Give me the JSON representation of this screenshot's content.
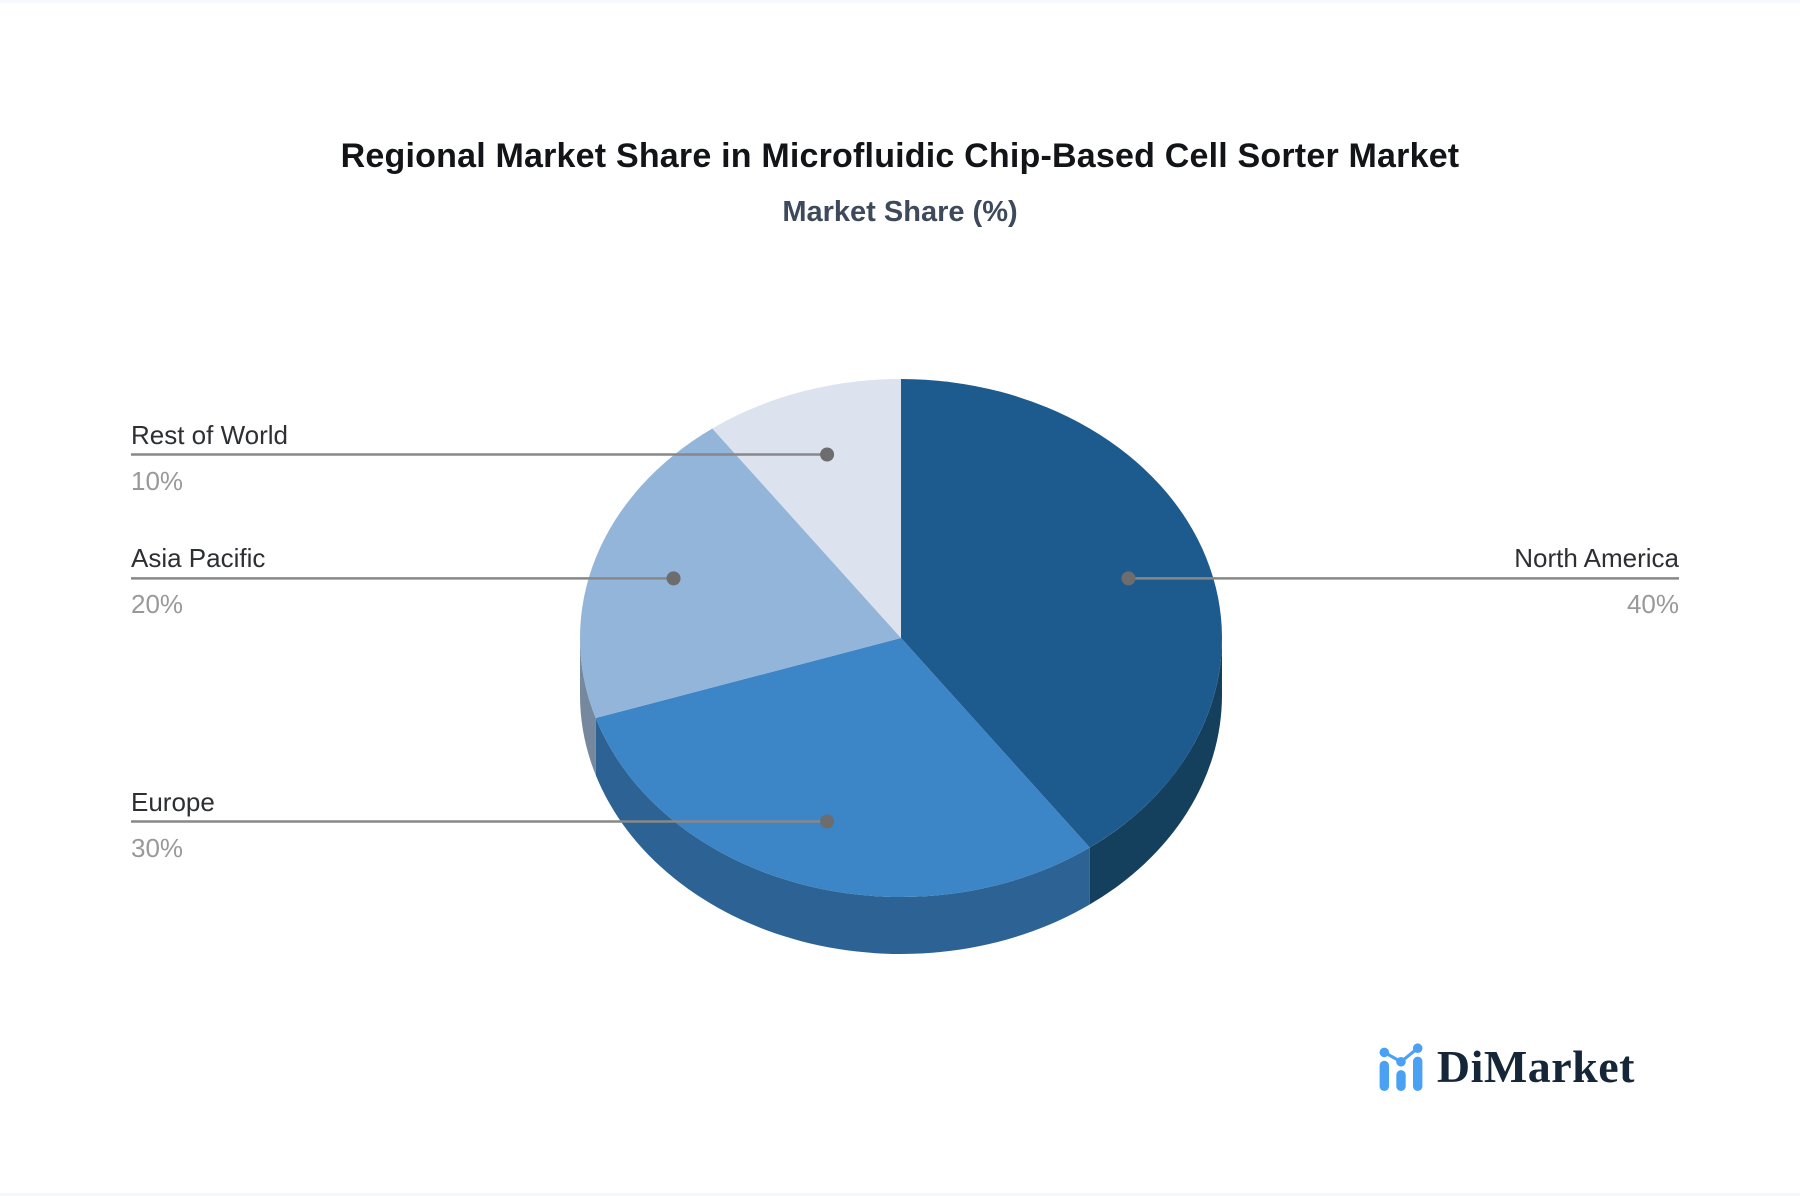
{
  "header": {
    "title": "Regional Market Share in Microfluidic Chip-Based Cell Sorter Market",
    "subtitle": "Market Share (%)"
  },
  "branding": {
    "logo_text": "DiMarket",
    "logo_icon": "bar-line-chart-icon",
    "logo_icon_color": "#4aa1f3",
    "logo_text_color": "#152638"
  },
  "chart_data": {
    "type": "pie",
    "title": "Regional Market Share in Microfluidic Chip-Based Cell Sorter Market",
    "unit_label": "Market Share (%)",
    "effect": "3d",
    "start_angle": "top",
    "direction": "clockwise",
    "legend_position": "none",
    "categories": [
      "North America",
      "Europe",
      "Asia Pacific",
      "Rest of World"
    ],
    "values": [
      40,
      30,
      20,
      10
    ],
    "slices": [
      {
        "label": "North America",
        "value": 40,
        "pct_label": "40%",
        "label_side": "right",
        "color_top": "#1d5b8e",
        "color_side": "#14405e"
      },
      {
        "label": "Europe",
        "value": 30,
        "pct_label": "30%",
        "label_side": "left",
        "color_top": "#3c85c6",
        "color_side": "#2c6394"
      },
      {
        "label": "Asia Pacific",
        "value": 20,
        "pct_label": "20%",
        "label_side": "left",
        "color_top": "#93b5d9",
        "color_side": "#76889e"
      },
      {
        "label": "Rest of World",
        "value": 10,
        "pct_label": "10%",
        "label_side": "left",
        "color_top": "#dce3ef",
        "color_side": "#bcc6d6"
      }
    ],
    "callout_style": {
      "line_color": "#888888",
      "dot_color": "#6d6d6d"
    }
  }
}
